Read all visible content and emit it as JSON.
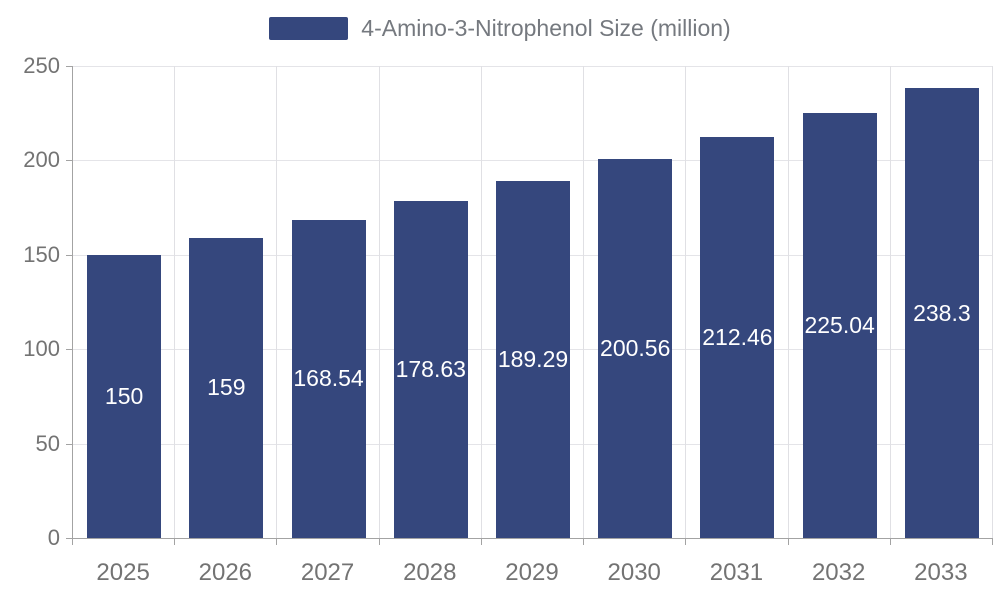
{
  "chart_data": {
    "type": "bar",
    "title": "4-Amino-3-Nitrophenol Size (million)",
    "legend_entries": [
      "4-Amino-3-Nitrophenol Size (million)"
    ],
    "legend_position": "top-center",
    "categories": [
      "2025",
      "2026",
      "2027",
      "2028",
      "2029",
      "2030",
      "2031",
      "2032",
      "2033"
    ],
    "series": [
      {
        "name": "4-Amino-3-Nitrophenol Size (million)",
        "values": [
          150,
          159,
          168.54,
          178.63,
          189.29,
          200.56,
          212.46,
          225.04,
          238.3
        ],
        "labels": [
          "150",
          "159",
          "168.54",
          "178.63",
          "189.29",
          "200.56",
          "212.46",
          "225.04",
          "238.3"
        ],
        "color": "#35477d"
      }
    ],
    "xlabel": "",
    "ylabel": "",
    "ylim": [
      0,
      250
    ],
    "y_ticks": [
      0,
      50,
      100,
      150,
      200,
      250
    ],
    "grid": true,
    "value_label_position": "inside-center",
    "value_label_color": "#ffffff",
    "axis_label_color": "#737373",
    "axis_line_color": "#a3a3a3",
    "grid_line_color": "#e4e4e8",
    "background": "#ffffff"
  }
}
